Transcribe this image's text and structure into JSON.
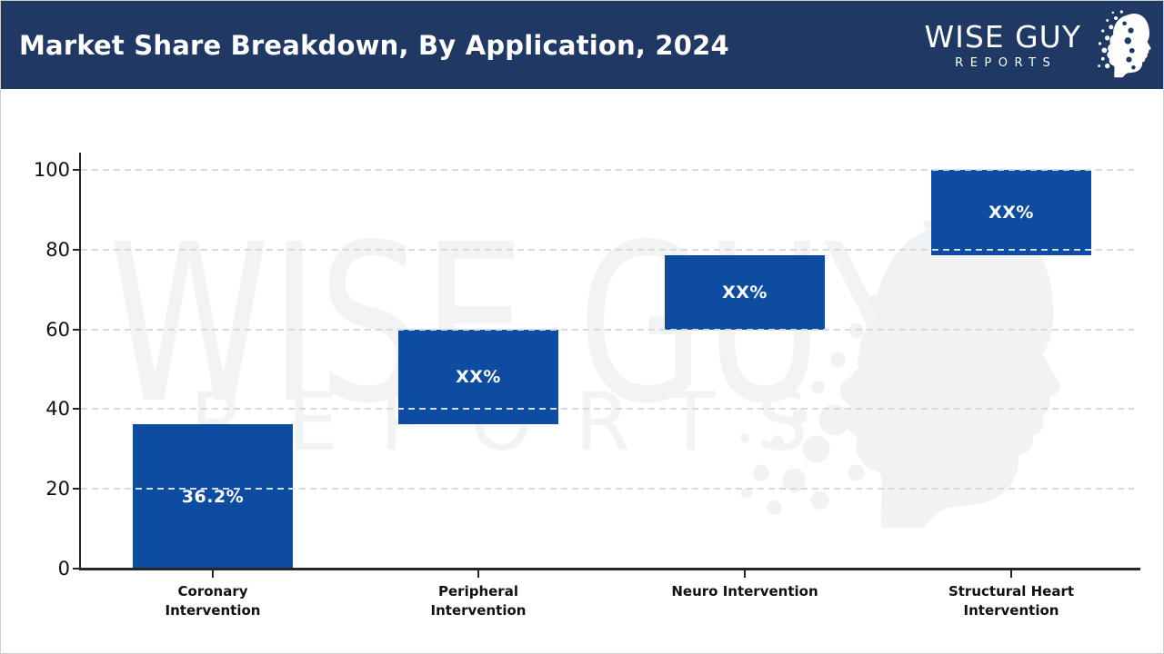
{
  "header": {
    "title": "Market Share Breakdown, By Application, 2024",
    "background": "#1f3864",
    "title_color": "#ffffff",
    "logo": {
      "line1": "WISE GUY",
      "line2": "REPORTS"
    }
  },
  "watermark": {
    "line1": "WISE GUY",
    "line2": "REPORTS"
  },
  "chart_data": {
    "type": "bar",
    "subtype": "stacked-waterfall",
    "title": "Market Share Breakdown, By Application, 2024",
    "categories": [
      "Coronary Intervention",
      "Peripheral Intervention",
      "Neuro Intervention",
      "Structural Heart Intervention"
    ],
    "bars": [
      {
        "category": "Coronary Intervention",
        "label_lines": [
          "Coronary",
          "Intervention"
        ],
        "start": 0,
        "end": 36.2,
        "value_label": "36.2%"
      },
      {
        "category": "Peripheral Intervention",
        "label_lines": [
          "Peripheral",
          "Intervention"
        ],
        "start": 36.2,
        "end": 60,
        "value_label": "XX%"
      },
      {
        "category": "Neuro Intervention",
        "label_lines": [
          "Neuro Intervention"
        ],
        "start": 60,
        "end": 78.5,
        "value_label": "XX%"
      },
      {
        "category": "Structural Heart Intervention",
        "label_lines": [
          "Structural Heart",
          "Intervention"
        ],
        "start": 78.5,
        "end": 100,
        "value_label": "XX%"
      }
    ],
    "y_ticks": [
      0,
      20,
      40,
      60,
      80,
      100
    ],
    "ylim": [
      0,
      105
    ],
    "xlabel": "",
    "ylabel": "",
    "legend": "none",
    "grid": "horizontal-dashed",
    "gridline_color": "#d9d9d9",
    "bar_color": "#0d4ca0",
    "value_label_color": "#ffffff",
    "axis_color": "#262626"
  }
}
